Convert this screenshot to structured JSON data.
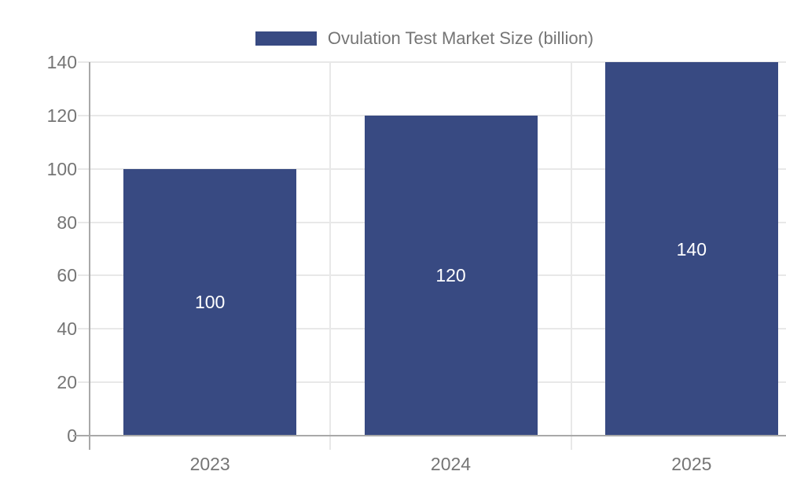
{
  "chart_data": {
    "type": "bar",
    "title": "Ovulation Test Market Size (billion)",
    "categories": [
      "2023",
      "2024",
      "2025"
    ],
    "values": [
      100,
      120,
      140
    ],
    "series": [
      {
        "name": "Ovulation Test Market Size (billion)",
        "values": [
          100,
          120,
          140
        ]
      }
    ],
    "xlabel": "",
    "ylabel": "",
    "ylim": [
      0,
      140
    ],
    "ytick_step": 20,
    "yticks": [
      0,
      20,
      40,
      60,
      80,
      100,
      120,
      140
    ],
    "grid": true,
    "legend_position": "top",
    "data_labels": [
      "100",
      "120",
      "140"
    ]
  },
  "colors": {
    "bar": "#384A82",
    "axis": "#a9a9a9",
    "gridline": "#e8e8e8",
    "tick_text": "#757575",
    "legend_text": "#757575",
    "data_label": "#ffffff",
    "background": "#ffffff"
  }
}
